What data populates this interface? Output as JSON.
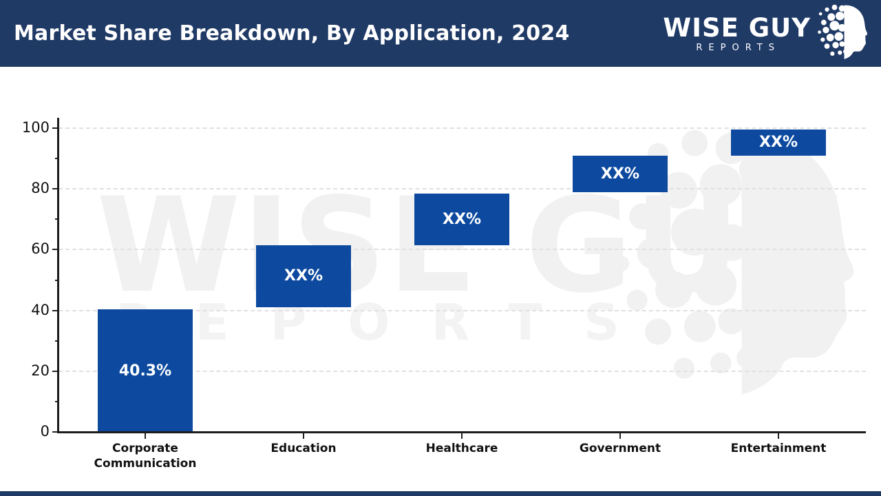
{
  "header": {
    "title": "Market Share Breakdown, By Application, 2024",
    "logo": {
      "line1": "WISE GUY",
      "line2": "REPORTS"
    }
  },
  "watermark": {
    "line1": "WISE GUY",
    "line2": "REPORTS"
  },
  "colors": {
    "header_bg": "#203a66",
    "footer_bg": "#203a66",
    "bar": "#0d4a9f",
    "bar_label": "#ffffff",
    "gridline": "#e0e0e0",
    "axis": "#1c1c1c",
    "watermark": "#f1f1f1"
  },
  "chart_data": {
    "type": "bar",
    "variant": "waterfall",
    "title": "Market Share Breakdown, By Application, 2024",
    "categories": [
      "Corporate Communication",
      "Education",
      "Healthcare",
      "Government",
      "Entertainment"
    ],
    "bars": [
      {
        "category": "Corporate Communication",
        "start": 0,
        "end": 40.3,
        "label": "40.3%"
      },
      {
        "category": "Education",
        "start": 41,
        "end": 61.5,
        "label": "XX%"
      },
      {
        "category": "Healthcare",
        "start": 61.5,
        "end": 78.5,
        "label": "XX%"
      },
      {
        "category": "Government",
        "start": 79,
        "end": 91,
        "label": "XX%"
      },
      {
        "category": "Entertainment",
        "start": 91,
        "end": 99.5,
        "label": "XX%"
      }
    ],
    "y_ticks": [
      0,
      20,
      40,
      60,
      80,
      100
    ],
    "y_minor_ticks": [
      10,
      30,
      50,
      70,
      90
    ],
    "ylim": [
      0,
      100
    ],
    "grid": "horizontal-dashed",
    "legend": "none",
    "xlabel": "",
    "ylabel": ""
  }
}
